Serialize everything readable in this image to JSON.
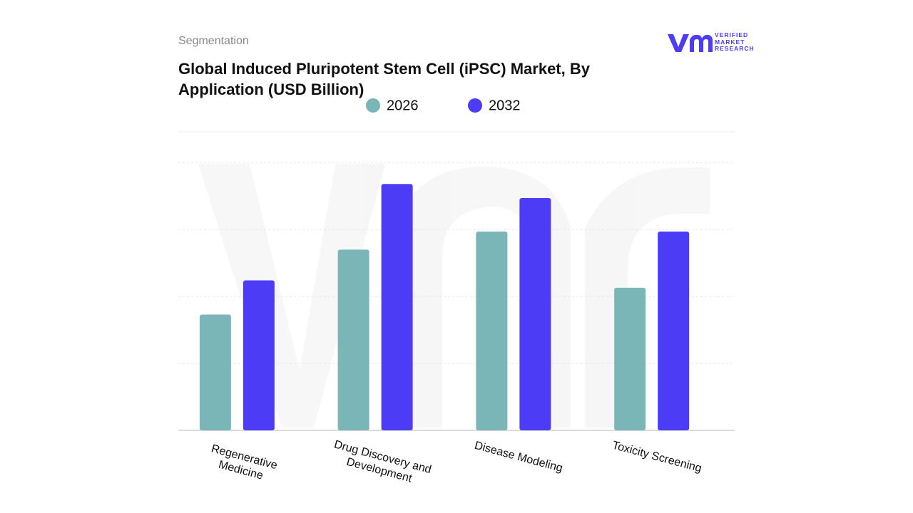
{
  "header": {
    "section": "Segmentation",
    "logo_lines": [
      "VERIFIED",
      "MARKET",
      "RESEARCH"
    ]
  },
  "chart_data": {
    "type": "bar",
    "title": "Global Induced Pluripotent Stem Cell (iPSC) Market, By Application (USD Billion)",
    "categories": [
      "Regenerative Medicine",
      "Drug Discovery and Development",
      "Disease Modeling",
      "Toxicity Screening"
    ],
    "series": [
      {
        "name": "2026",
        "color": "#7ab5b8",
        "values": [
          1.73,
          2.7,
          2.97,
          2.13
        ]
      },
      {
        "name": "2032",
        "color": "#4c3cf5",
        "values": [
          2.24,
          3.68,
          3.47,
          2.97
        ]
      }
    ],
    "ylim": [
      0,
      4.46
    ],
    "gridlines": [
      1,
      2,
      3,
      4
    ],
    "grid": true
  }
}
